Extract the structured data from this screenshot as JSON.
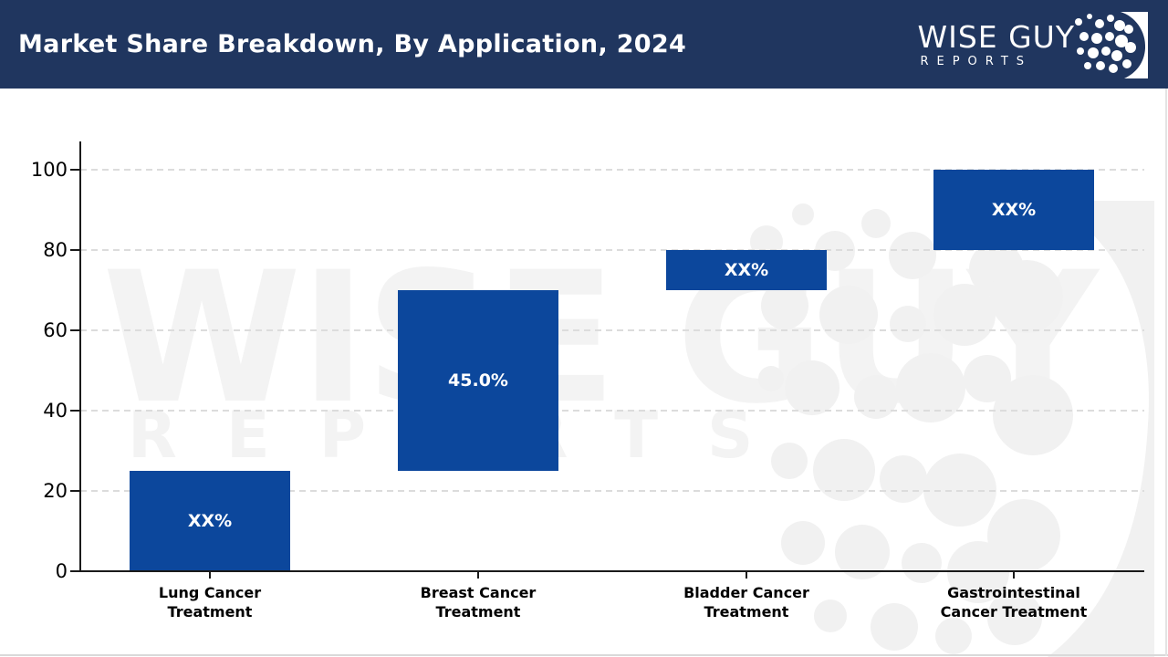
{
  "header": {
    "title": "Market Share Breakdown, By Application, 2024",
    "logo_line1": "WISE GUY",
    "logo_line2": "REPORTS"
  },
  "watermark": {
    "line1": "WISE GUY",
    "line2": "REPORTS"
  },
  "colors": {
    "header_bg": "#20365f",
    "bar": "#0c479c",
    "bar_label": "#ffffff",
    "grid": "#dcdcdc",
    "axis": "#1a1a1a",
    "watermark": "#f3f3f3"
  },
  "chart_data": {
    "type": "bar",
    "variant": "waterfall",
    "title": "Market Share Breakdown, By Application, 2024",
    "categories": [
      [
        "Lung Cancer",
        "Treatment"
      ],
      [
        "Breast Cancer",
        "Treatment"
      ],
      [
        "Bladder Cancer",
        "Treatment"
      ],
      [
        "Gastrointestinal",
        "Cancer Treatment"
      ]
    ],
    "segments": [
      {
        "category": "Lung Cancer Treatment",
        "start": 0,
        "end": 25,
        "label": "XX%"
      },
      {
        "category": "Breast Cancer Treatment",
        "start": 25,
        "end": 70,
        "label": "45.0%"
      },
      {
        "category": "Bladder Cancer Treatment",
        "start": 70,
        "end": 80,
        "label": "XX%"
      },
      {
        "category": "Gastrointestinal Cancer Treatment",
        "start": 80,
        "end": 100,
        "label": "XX%"
      }
    ],
    "xlabel": "",
    "ylabel": "",
    "yticks": [
      0,
      20,
      40,
      60,
      80,
      100
    ],
    "ylim": [
      0,
      107
    ],
    "grid": "horizontal-dashed",
    "legend": null
  }
}
